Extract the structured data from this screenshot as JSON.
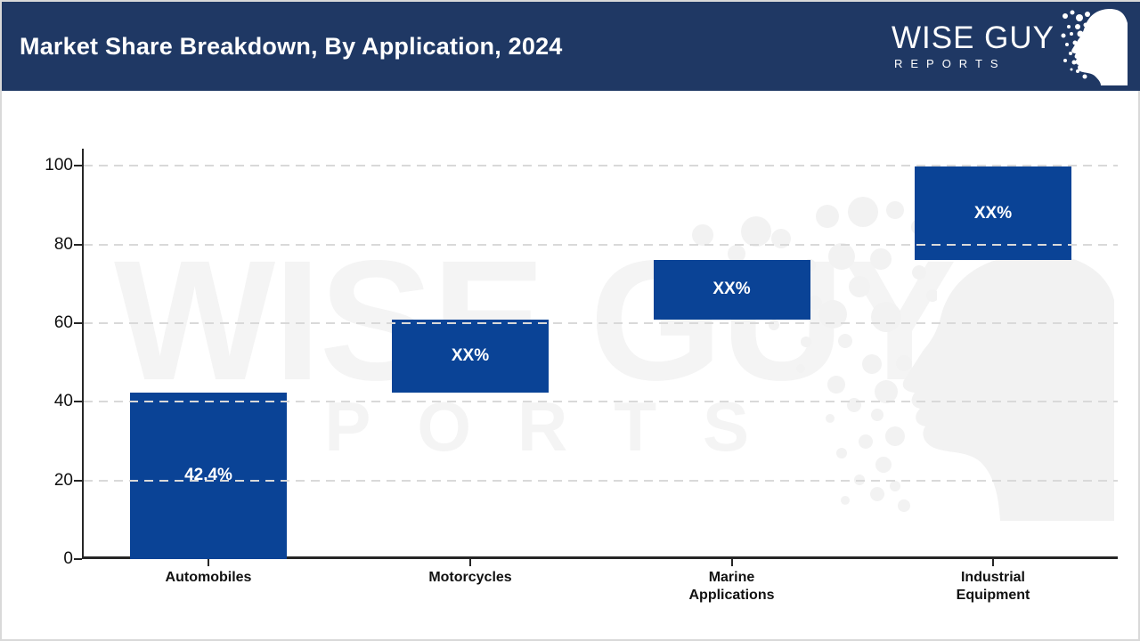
{
  "header": {
    "title": "Market Share Breakdown, By Application, 2024",
    "background_color": "#1f3864",
    "logo": {
      "line1": "WISE GUY",
      "line2": "REPORTS",
      "face_icon": "head-profile-dots-icon"
    }
  },
  "watermark": {
    "line1": "WISE GUY",
    "line2": "REPORTS"
  },
  "chart_data": {
    "type": "bar",
    "subtype": "waterfall",
    "title": "Market Share Breakdown, By Application, 2024",
    "categories": [
      "Automobiles",
      "Motorcycles",
      "Marine Applications",
      "Industrial Equipment"
    ],
    "segments": [
      {
        "label": "Automobiles",
        "label_lines": [
          "Automobiles"
        ],
        "start": 0,
        "end": 42.4,
        "value_label": "42.4%"
      },
      {
        "label": "Motorcycles",
        "label_lines": [
          "Motorcycles"
        ],
        "start": 42.4,
        "end": 61,
        "value_label": "XX%"
      },
      {
        "label": "Marine Applications",
        "label_lines": [
          "Marine",
          "Applications"
        ],
        "start": 61,
        "end": 76,
        "value_label": "XX%"
      },
      {
        "label": "Industrial Equipment",
        "label_lines": [
          "Industrial",
          "Equipment"
        ],
        "start": 76,
        "end": 99.8,
        "value_label": "XX%"
      }
    ],
    "yticks": [
      0,
      20,
      40,
      60,
      80,
      100
    ],
    "ylim": [
      0,
      104.5
    ],
    "xlabel": "",
    "ylabel": "",
    "bar_color": "#0a4396",
    "grid": "horizontal-dashed",
    "grid_color": "#d9d9d9",
    "axis_color": "#262626",
    "legend": "none"
  }
}
